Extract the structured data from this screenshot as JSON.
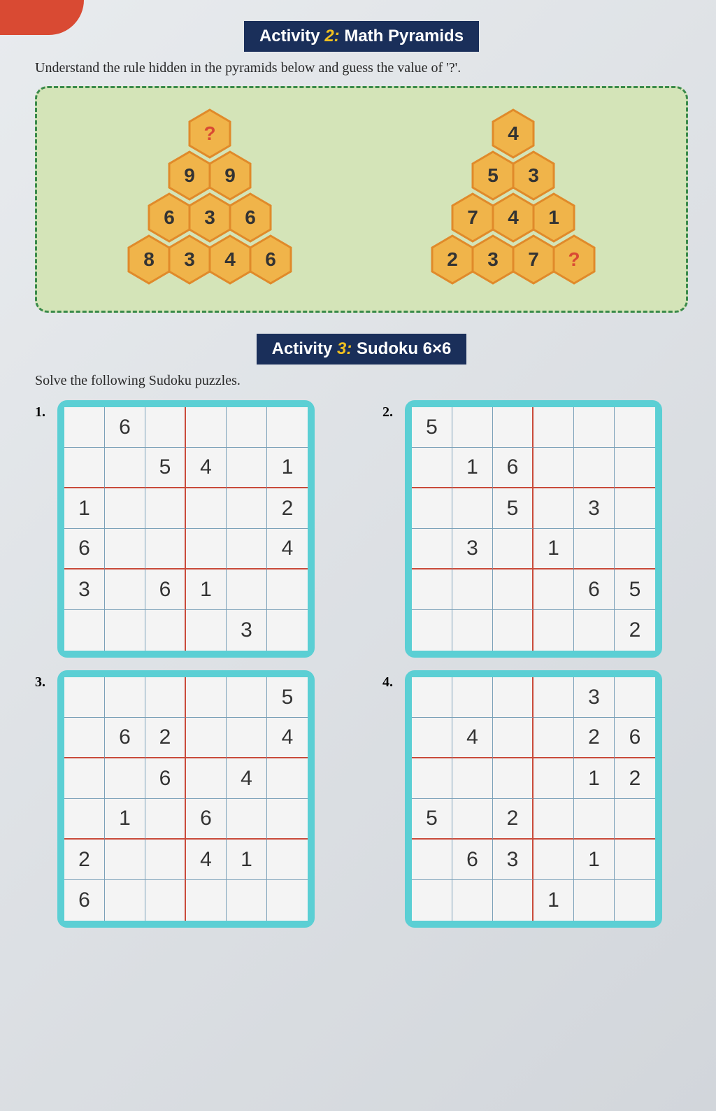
{
  "activity2": {
    "title_prefix": "Activity",
    "title_num": "2:",
    "title_text": "Math Pyramids",
    "instruction": "Understand the rule hidden in the pyramids below and guess the value of '?'.",
    "header_bg": "#1a2f5a",
    "header_num_color": "#f0c020",
    "box_border": "#3a8a4a",
    "box_bg": "#d4e4b8",
    "hex_fill": "#f0b44a",
    "hex_stroke": "#e08a2a",
    "q_color": "#d94a33",
    "pyramids": [
      {
        "rows": [
          [
            {
              "v": "?",
              "q": true
            }
          ],
          [
            {
              "v": "9"
            },
            {
              "v": "9"
            }
          ],
          [
            {
              "v": "6"
            },
            {
              "v": "3"
            },
            {
              "v": "6"
            }
          ],
          [
            {
              "v": "8"
            },
            {
              "v": "3"
            },
            {
              "v": "4"
            },
            {
              "v": "6"
            }
          ]
        ]
      },
      {
        "rows": [
          [
            {
              "v": "4"
            }
          ],
          [
            {
              "v": "5"
            },
            {
              "v": "3"
            }
          ],
          [
            {
              "v": "7"
            },
            {
              "v": "4"
            },
            {
              "v": "1"
            }
          ],
          [
            {
              "v": "2"
            },
            {
              "v": "3"
            },
            {
              "v": "7"
            },
            {
              "v": "?",
              "q": true
            }
          ]
        ]
      }
    ]
  },
  "activity3": {
    "title_prefix": "Activity",
    "title_num": "3:",
    "title_text": "Sudoku 6×6",
    "instruction": "Solve the following Sudoku puzzles.",
    "board_border": "#5bcfd4",
    "cell_line": "#7aa0b8",
    "box_line": "#c94a3a",
    "cell_fontsize": 30,
    "puzzles": [
      {
        "num": "1.",
        "grid": [
          [
            "",
            "6",
            "",
            "",
            "",
            ""
          ],
          [
            "",
            "",
            "5",
            "4",
            "",
            "1"
          ],
          [
            "1",
            "",
            "",
            "",
            "",
            "2"
          ],
          [
            "6",
            "",
            "",
            "",
            "",
            "4"
          ],
          [
            "3",
            "",
            "6",
            "1",
            "",
            ""
          ],
          [
            "",
            "",
            "",
            "",
            "3",
            ""
          ]
        ]
      },
      {
        "num": "2.",
        "grid": [
          [
            "5",
            "",
            "",
            "",
            "",
            ""
          ],
          [
            "",
            "1",
            "6",
            "",
            "",
            ""
          ],
          [
            "",
            "",
            "5",
            "",
            "3",
            ""
          ],
          [
            "",
            "3",
            "",
            "1",
            "",
            ""
          ],
          [
            "",
            "",
            "",
            "",
            "6",
            "5"
          ],
          [
            "",
            "",
            "",
            "",
            "",
            "2"
          ]
        ]
      },
      {
        "num": "3.",
        "grid": [
          [
            "",
            "",
            "",
            "",
            "",
            "5"
          ],
          [
            "",
            "6",
            "2",
            "",
            "",
            "4"
          ],
          [
            "",
            "",
            "6",
            "",
            "4",
            ""
          ],
          [
            "",
            "1",
            "",
            "6",
            "",
            ""
          ],
          [
            "2",
            "",
            "",
            "4",
            "1",
            ""
          ],
          [
            "6",
            "",
            "",
            "",
            "",
            ""
          ]
        ]
      },
      {
        "num": "4.",
        "grid": [
          [
            "",
            "",
            "",
            "",
            "3",
            ""
          ],
          [
            "",
            "4",
            "",
            "",
            "2",
            "6"
          ],
          [
            "",
            "",
            "",
            "",
            "1",
            "2"
          ],
          [
            "5",
            "",
            "2",
            "",
            "",
            ""
          ],
          [
            "",
            "6",
            "3",
            "",
            "1",
            ""
          ],
          [
            "",
            "",
            "",
            "1",
            "",
            ""
          ]
        ]
      }
    ]
  }
}
